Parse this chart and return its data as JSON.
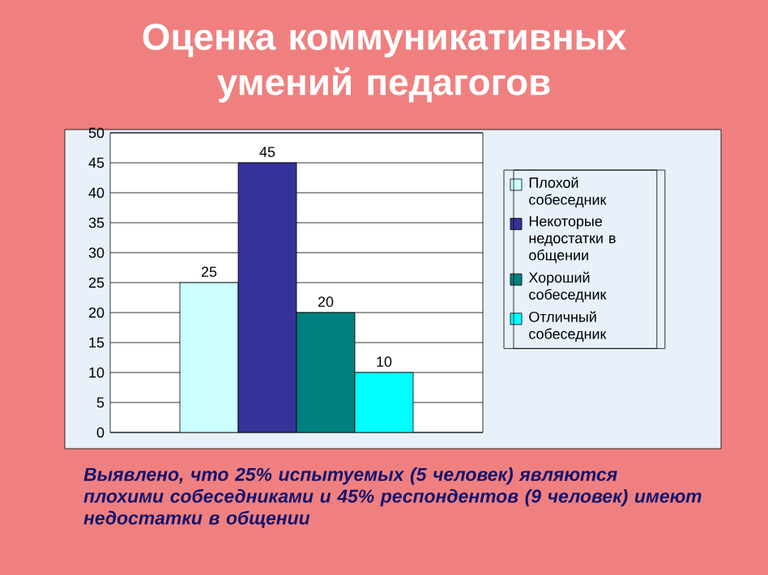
{
  "chart_data": {
    "type": "bar",
    "title": "Оценка коммуникативных умений педагогов",
    "categories": [
      null
    ],
    "series": [
      {
        "name": "Плохой собеседник",
        "color": "#ccffff",
        "values": [
          25
        ]
      },
      {
        "name": "Некоторые недостатки в общении",
        "color": "#333399",
        "values": [
          45
        ]
      },
      {
        "name": "Хороший собеседник",
        "color": "#008080",
        "values": [
          20
        ]
      },
      {
        "name": "Отличный собеседник",
        "color": "#00ffff",
        "values": [
          10
        ]
      }
    ],
    "ylim": [
      0,
      50
    ],
    "yticks": [
      0,
      5,
      10,
      15,
      20,
      25,
      30,
      35,
      40,
      45,
      50
    ],
    "grid": "y",
    "legend": "right",
    "data_labels": true,
    "annotations": [
      "Выявлено, что 25% испытуемых (5 человек) являются плохими собеседниками и 45% респондентов (9 человек) имеют недостатки в общении"
    ]
  }
}
